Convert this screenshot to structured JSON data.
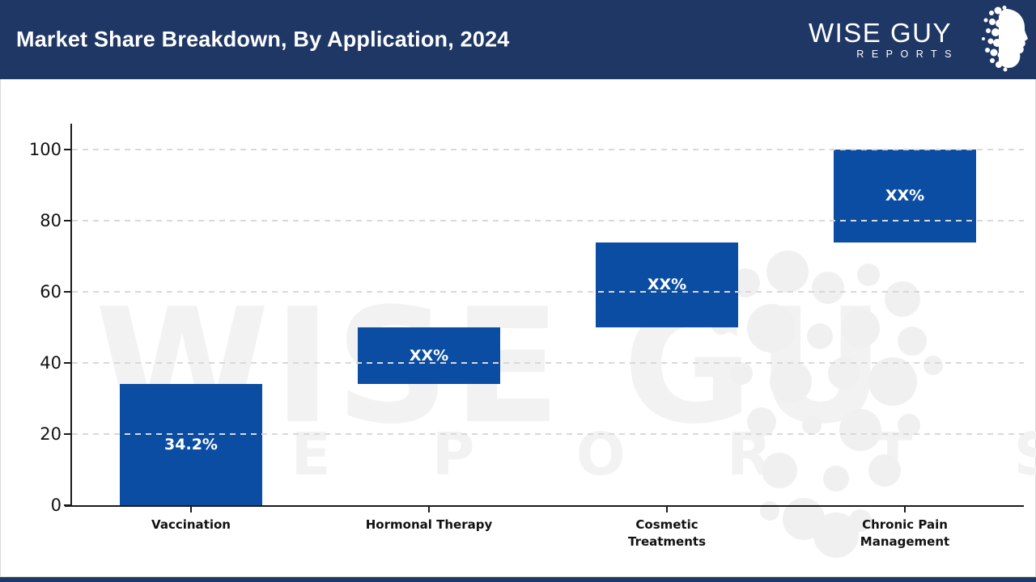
{
  "header": {
    "title": "Market Share Breakdown, By Application, 2024",
    "logo_line1": "WISE GUY",
    "logo_line2": "REPORTS"
  },
  "watermark": {
    "line1": "WISE GU",
    "line2": "R E P O R T S"
  },
  "chart_data": {
    "type": "bar",
    "subtype": "floating_segment_waterfall",
    "title": "Market Share Breakdown, By Application, 2024",
    "categories": [
      "Vaccination",
      "Hormonal Therapy",
      "Cosmetic\nTreatments",
      "Chronic Pain\nManagement"
    ],
    "segments": [
      {
        "category": "Vaccination",
        "start": 0,
        "end": 34.2,
        "label": "34.2%"
      },
      {
        "category": "Hormonal Therapy",
        "start": 34.2,
        "end": 50,
        "label": "XX%"
      },
      {
        "category": "Cosmetic Treatments",
        "start": 50,
        "end": 74,
        "label": "XX%"
      },
      {
        "category": "Chronic Pain Management",
        "start": 74,
        "end": 100,
        "label": "XX%"
      }
    ],
    "yticks": [
      0,
      20,
      40,
      60,
      80,
      100
    ],
    "ylim": [
      0,
      108
    ],
    "grid": "horizontal-dashed",
    "legend": "none",
    "bar_color": "#0b4da2",
    "bar_label_color": "#ffffff",
    "axis_color": "#1a1a1a",
    "grid_color": "#d9d9d9"
  },
  "colors": {
    "header_bg": "#1f3765",
    "footer_bg": "#1f3765",
    "page_bg": "#ffffff",
    "watermark": "#f2f2f2"
  }
}
